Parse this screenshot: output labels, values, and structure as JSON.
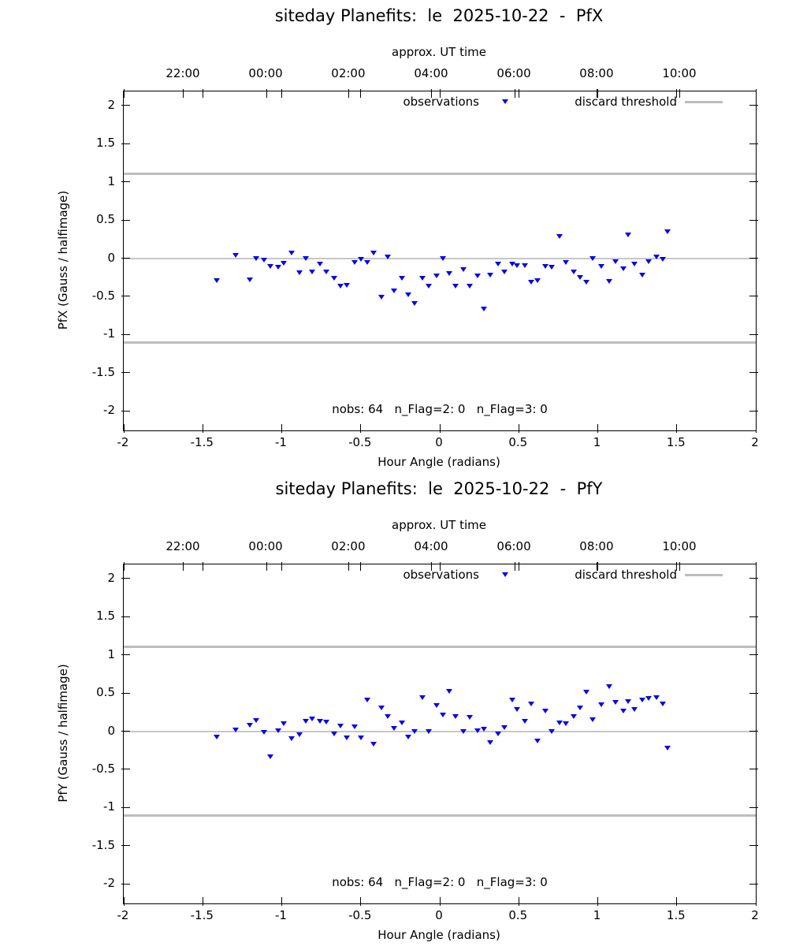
{
  "page": {
    "background": "#ffffff"
  },
  "chart_data": [
    {
      "type": "scatter",
      "title": "siteday Planefits:  le  2025-10-22  -  PfX",
      "x2label": "approx. UT time",
      "xlabel": "Hour Angle (radians)",
      "ylabel": "PfX (Gauss / halfimage)",
      "annotation": "nobs: 64   n_Flag=2: 0   n_Flag=3: 0",
      "legend": [
        {
          "label": "observations",
          "marker": "triangle-down-icon",
          "color": "#0000ee"
        },
        {
          "label": "discard threshold",
          "marker": "line-icon",
          "color": "#bdbdbd"
        }
      ],
      "xlim": [
        -2,
        2
      ],
      "ylim": [
        -2.2,
        2.2
      ],
      "grid": false,
      "legend_position": "top-inside",
      "x_ticks": [
        -2,
        -1.5,
        -1,
        -0.5,
        0,
        0.5,
        1,
        1.5,
        2
      ],
      "x_tick_labels": [
        "-2",
        "-1.5",
        "-1",
        "-0.5",
        "0",
        "0.5",
        "1",
        "1.5",
        "2"
      ],
      "y_ticks": [
        2,
        1.5,
        1,
        0.5,
        0,
        -0.5,
        -1,
        -1.5,
        -2
      ],
      "y_tick_labels": [
        "2",
        "1.5",
        "1",
        "0.5",
        "0",
        "-0.5",
        "-1",
        "-1.5",
        "-2"
      ],
      "x2_ticks": {
        "labels": [
          "22:00",
          "00:00",
          "02:00",
          "04:00",
          "06:00",
          "08:00",
          "10:00"
        ],
        "x": [
          -1.621,
          -1.097,
          -0.574,
          -0.05,
          0.474,
          0.997,
          1.521
        ]
      },
      "discard_threshold": [
        1.1,
        -1.1
      ],
      "zero_line": 0,
      "marker_color": "#0000ee",
      "threshold_color": "#bdbdbd",
      "zero_line_color": "#c6c6c6",
      "series": [
        {
          "name": "observations",
          "x": [
            -1.41,
            -1.29,
            -1.2,
            -1.16,
            -1.11,
            -1.07,
            -1.02,
            -0.99,
            -0.94,
            -0.89,
            -0.85,
            -0.81,
            -0.76,
            -0.72,
            -0.67,
            -0.63,
            -0.59,
            -0.54,
            -0.5,
            -0.46,
            -0.42,
            -0.37,
            -0.33,
            -0.29,
            -0.24,
            -0.2,
            -0.16,
            -0.11,
            -0.07,
            -0.02,
            0.02,
            0.06,
            0.1,
            0.15,
            0.19,
            0.24,
            0.28,
            0.32,
            0.37,
            0.41,
            0.46,
            0.49,
            0.54,
            0.58,
            0.62,
            0.67,
            0.71,
            0.76,
            0.8,
            0.85,
            0.89,
            0.93,
            0.97,
            1.02,
            1.07,
            1.11,
            1.16,
            1.19,
            1.23,
            1.28,
            1.32,
            1.37,
            1.41,
            1.44
          ],
          "y": [
            -0.29,
            0.04,
            -0.28,
            -0.01,
            -0.03,
            -0.11,
            -0.12,
            -0.07,
            0.07,
            -0.19,
            -0.01,
            -0.18,
            -0.08,
            -0.18,
            -0.26,
            -0.37,
            -0.36,
            -0.06,
            -0.02,
            -0.06,
            0.07,
            -0.51,
            0.02,
            -0.43,
            -0.26,
            -0.48,
            -0.59,
            -0.26,
            -0.37,
            -0.23,
            0.0,
            -0.2,
            -0.37,
            -0.15,
            -0.37,
            -0.23,
            -0.67,
            -0.22,
            -0.08,
            -0.18,
            -0.08,
            -0.1,
            -0.1,
            -0.31,
            -0.29,
            -0.11,
            -0.12,
            0.28,
            -0.06,
            -0.18,
            -0.25,
            -0.31,
            0.0,
            -0.11,
            -0.3,
            -0.05,
            -0.14,
            0.3,
            -0.08,
            -0.22,
            -0.05,
            0.02,
            -0.02,
            0.35
          ]
        }
      ],
      "nobs": 64
    },
    {
      "type": "scatter",
      "title": "siteday Planefits:  le  2025-10-22  -  PfY",
      "x2label": "approx. UT time",
      "xlabel": "Hour Angle (radians)",
      "ylabel": "PfY (Gauss / halfimage)",
      "annotation": "nobs: 64   n_Flag=2: 0   n_Flag=3: 0",
      "legend": [
        {
          "label": "observations",
          "marker": "triangle-down-icon",
          "color": "#0000ee"
        },
        {
          "label": "discard threshold",
          "marker": "line-icon",
          "color": "#bdbdbd"
        }
      ],
      "xlim": [
        -2,
        2
      ],
      "ylim": [
        -2.2,
        2.2
      ],
      "grid": false,
      "legend_position": "top-inside",
      "x_ticks": [
        -2,
        -1.5,
        -1,
        -0.5,
        0,
        0.5,
        1,
        1.5,
        2
      ],
      "x_tick_labels": [
        "-2",
        "-1.5",
        "-1",
        "-0.5",
        "0",
        "0.5",
        "1",
        "1.5",
        "2"
      ],
      "y_ticks": [
        2,
        1.5,
        1,
        0.5,
        0,
        -0.5,
        -1,
        -1.5,
        -2
      ],
      "y_tick_labels": [
        "2",
        "1.5",
        "1",
        "0.5",
        "0",
        "-0.5",
        "-1",
        "-1.5",
        "-2"
      ],
      "x2_ticks": {
        "labels": [
          "22:00",
          "00:00",
          "02:00",
          "04:00",
          "06:00",
          "08:00",
          "10:00"
        ],
        "x": [
          -1.621,
          -1.097,
          -0.574,
          -0.05,
          0.474,
          0.997,
          1.521
        ]
      },
      "discard_threshold": [
        1.1,
        -1.1
      ],
      "zero_line": 0,
      "marker_color": "#0000ee",
      "threshold_color": "#bdbdbd",
      "zero_line_color": "#c6c6c6",
      "series": [
        {
          "name": "observations",
          "x": [
            -1.41,
            -1.29,
            -1.2,
            -1.16,
            -1.11,
            -1.07,
            -1.02,
            -0.99,
            -0.94,
            -0.89,
            -0.85,
            -0.81,
            -0.76,
            -0.72,
            -0.67,
            -0.63,
            -0.59,
            -0.54,
            -0.5,
            -0.46,
            -0.42,
            -0.37,
            -0.33,
            -0.29,
            -0.24,
            -0.2,
            -0.16,
            -0.11,
            -0.07,
            -0.02,
            0.02,
            0.06,
            0.1,
            0.15,
            0.19,
            0.24,
            0.28,
            0.32,
            0.37,
            0.41,
            0.46,
            0.49,
            0.54,
            0.58,
            0.62,
            0.67,
            0.71,
            0.76,
            0.8,
            0.85,
            0.89,
            0.93,
            0.97,
            1.02,
            1.07,
            1.11,
            1.16,
            1.19,
            1.23,
            1.28,
            1.32,
            1.37,
            1.41,
            1.44
          ],
          "y": [
            -0.08,
            0.02,
            0.08,
            0.14,
            -0.02,
            -0.34,
            0.01,
            0.1,
            -0.1,
            -0.05,
            0.13,
            0.16,
            0.13,
            0.12,
            -0.04,
            0.07,
            -0.09,
            0.06,
            -0.09,
            0.41,
            -0.17,
            0.3,
            0.19,
            0.04,
            0.11,
            -0.08,
            -0.01,
            0.44,
            -0.01,
            0.34,
            0.21,
            0.52,
            0.19,
            0.0,
            0.18,
            0.01,
            0.03,
            -0.15,
            -0.04,
            0.05,
            0.41,
            0.28,
            0.13,
            0.36,
            -0.13,
            0.26,
            -0.01,
            0.11,
            0.1,
            0.19,
            0.3,
            0.51,
            0.15,
            0.35,
            0.58,
            0.38,
            0.26,
            0.39,
            0.28,
            0.41,
            0.43,
            0.44,
            0.36,
            -0.22
          ]
        }
      ],
      "nobs": 64
    }
  ]
}
